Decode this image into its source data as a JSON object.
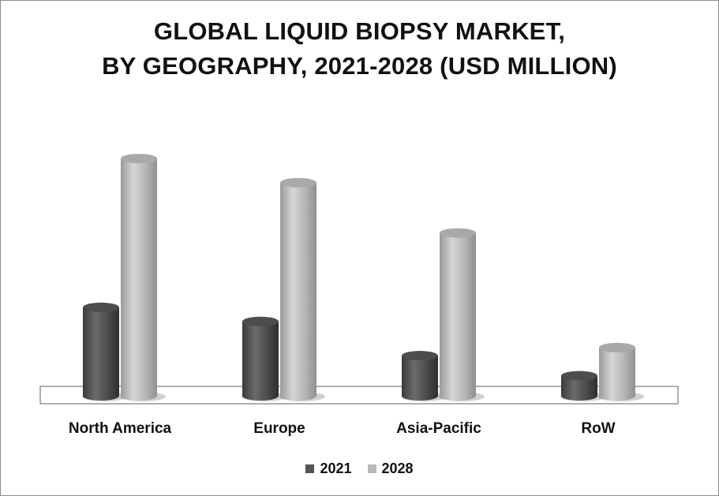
{
  "chart_data": {
    "type": "bar",
    "title_lines": [
      "GLOBAL LIQUID BIOPSY MARKET,",
      "BY GEOGRAPHY, 2021-2028 (USD MILLION)"
    ],
    "categories": [
      "North America",
      "Europe",
      "Asia-Pacific",
      "RoW"
    ],
    "series": [
      {
        "name": "2021",
        "color": "#555555",
        "values": [
          22,
          18.5,
          10,
          5
        ]
      },
      {
        "name": "2028",
        "color": "#b8b8b8",
        "values": [
          59,
          53,
          40.5,
          12
        ]
      }
    ],
    "ylim": [
      0,
      60
    ],
    "grid": false,
    "legend_position": "bottom",
    "style": "3d-cylinder"
  }
}
